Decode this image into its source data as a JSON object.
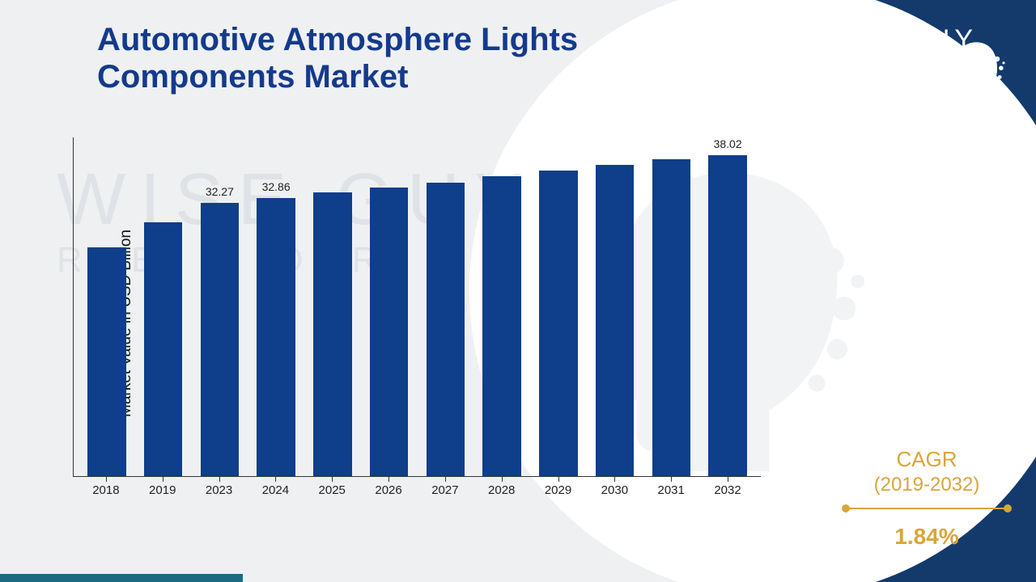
{
  "title": "Automotive Atmosphere Lights Components Market",
  "brand": {
    "line1": "WISE GUY",
    "line2": "R E P O R T S"
  },
  "cagr": {
    "label": "CAGR",
    "period": "(2019-2032)",
    "value": "1.84%",
    "color": "#d9a63b"
  },
  "chart": {
    "type": "bar",
    "ylabel": "Market Value in USD Billion",
    "ylim": [
      0,
      40
    ],
    "bar_color": "#0f3e8a",
    "axis_color": "#333333",
    "label_fontsize": 14,
    "tick_fontsize": 15,
    "ylabel_fontsize": 19,
    "background": "#eef0f2",
    "bar_width_ratio": 0.68,
    "categories": [
      "2018",
      "2019",
      "2023",
      "2024",
      "2025",
      "2026",
      "2027",
      "2028",
      "2029",
      "2030",
      "2031",
      "2032"
    ],
    "values": [
      27.0,
      30.0,
      32.27,
      32.86,
      33.5,
      34.1,
      34.7,
      35.4,
      36.1,
      36.8,
      37.4,
      38.02
    ],
    "value_labels": [
      "",
      "",
      "32.27",
      "32.86",
      "",
      "",
      "",
      "",
      "",
      "",
      "",
      "38.02"
    ]
  },
  "colors": {
    "panel": "#143a6c",
    "circle": "#ffffff",
    "title": "#143a8c",
    "footer_accent": "#1b6a82"
  }
}
